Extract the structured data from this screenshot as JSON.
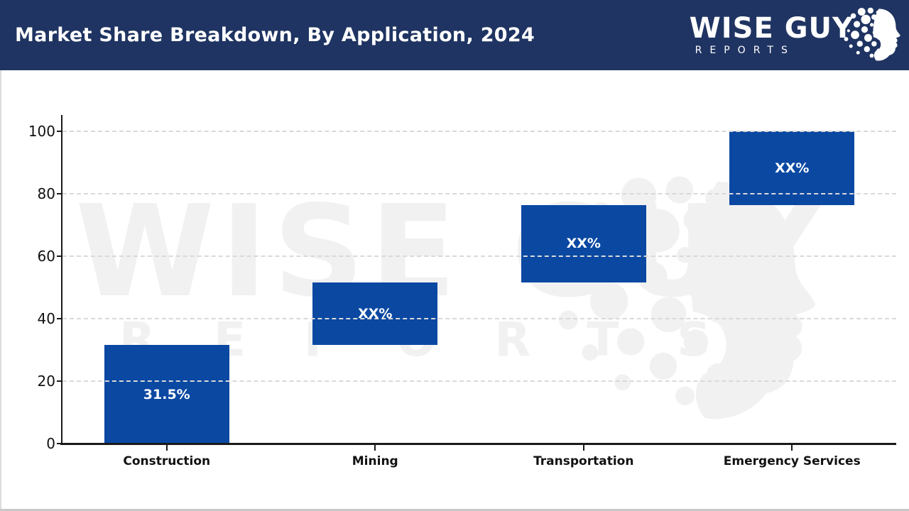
{
  "header": {
    "title": "Market Share Breakdown, By Application, 2024",
    "logo": {
      "name": "WISE GUY",
      "tagline": "REPORTS"
    }
  },
  "watermark": {
    "name": "WISE GUY",
    "tagline": "REPORTS"
  },
  "chart_data": {
    "type": "bar",
    "subtype": "waterfall",
    "title": "Market Share Breakdown, By Application, 2024",
    "categories": [
      "Construction",
      "Mining",
      "Transportation",
      "Emergency Services"
    ],
    "segments": [
      {
        "category": "Construction",
        "label": "31.5%",
        "start": 0,
        "end": 31.5
      },
      {
        "category": "Mining",
        "label": "XX%",
        "start": 31.5,
        "end": 51.6
      },
      {
        "category": "Transportation",
        "label": "XX%",
        "start": 51.6,
        "end": 76.4
      },
      {
        "category": "Emergency Services",
        "label": "XX%",
        "start": 76.4,
        "end": 100
      }
    ],
    "yticks": [
      0,
      20,
      40,
      60,
      80,
      100
    ],
    "ylim": [
      0,
      105
    ],
    "xlabel": "",
    "ylabel": "",
    "legend": "none",
    "grid": "horizontal-dashed",
    "colors": {
      "bar": "#0a48a2",
      "grid": "#d9d9d9",
      "axis": "#1a1a1a",
      "bar_label": "#ffffff",
      "header_bg": "#1f3462",
      "watermark": "#f1f1f2"
    }
  }
}
